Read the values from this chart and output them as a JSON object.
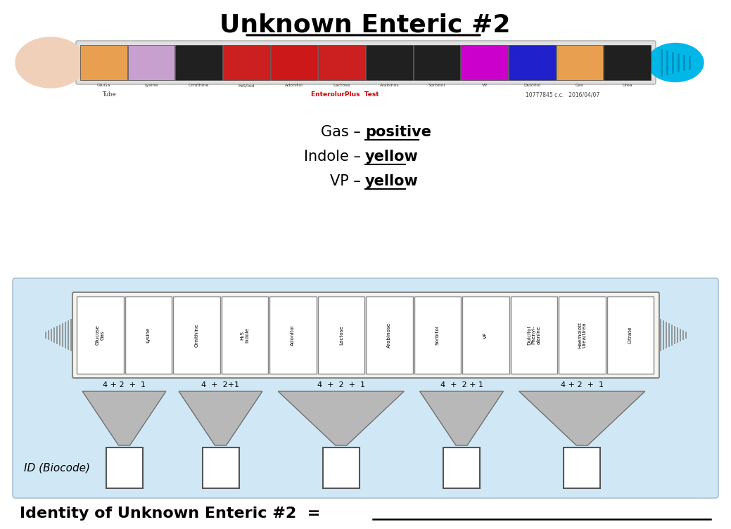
{
  "title": "Unknown Enteric #2",
  "gas_prefix": "Gas – ",
  "gas_result": "positive",
  "indole_prefix": "Indole – ",
  "indole_result": "yellow",
  "vp_prefix": "VP – ",
  "vp_result": "yellow",
  "tube_labels": [
    "Glucose\nGas",
    "Lysine",
    "Ornithine",
    "H₂S\nIndole",
    "Adonitol",
    "Lactose",
    "Arabinose",
    "Sorbitol",
    "VP",
    "Dulcitol\nPhenyl-\nalanine",
    "Haemolott\nUrea/Urea",
    "Citrate"
  ],
  "tube_colors": [
    "#e8a050",
    "#c8a0d0",
    "#202020",
    "#cc2020",
    "#cc1818",
    "#cc2020",
    "#202020",
    "#202020",
    "#cc00cc",
    "#2020cc",
    "#e8a050",
    "#202020"
  ],
  "groups": [
    {
      "cells": [
        0,
        1
      ],
      "label": "4 + 2  +  1"
    },
    {
      "cells": [
        2,
        3
      ],
      "label": "4  +  2+1"
    },
    {
      "cells": [
        4,
        5,
        6
      ],
      "label": "4  +  2  +  1"
    },
    {
      "cells": [
        7,
        8
      ],
      "label": "4  +  2 + 1"
    },
    {
      "cells": [
        9,
        10,
        11
      ],
      "label": "4 + 2  +  1"
    }
  ],
  "identity_label": "Identity of Unknown Enteric #2  =",
  "id_biocode": "ID (Biocode)",
  "bio_bg": "#d0e8f5",
  "strip_bg": "#f5f5f0"
}
